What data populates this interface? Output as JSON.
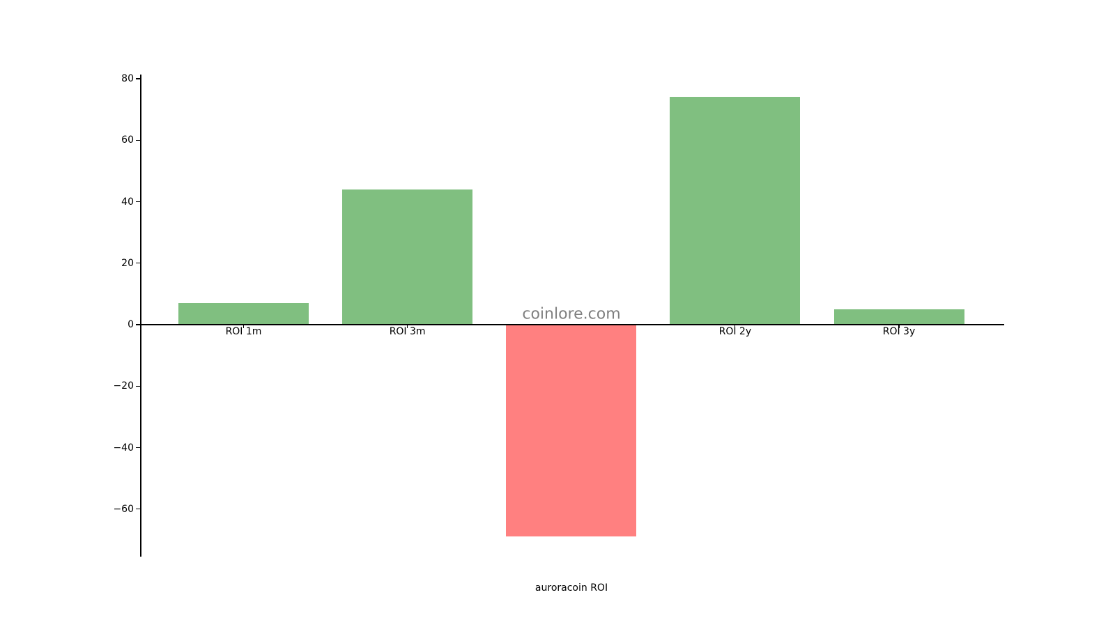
{
  "chart_data": {
    "type": "bar",
    "xlabel": "auroracoin ROI",
    "watermark": "coinlore.com",
    "categories": [
      "ROI 1m",
      "ROI 3m",
      "",
      "ROI 2y",
      "ROI 3y"
    ],
    "values": [
      7,
      44,
      -69,
      74,
      5
    ],
    "positive_color": "#80bf80",
    "negative_color": "#ff8080",
    "y_ticks": [
      80,
      60,
      40,
      20,
      0,
      -20,
      -40,
      -60
    ],
    "ylim": [
      -75.5,
      81.5
    ],
    "grid": false,
    "legend": null,
    "axis_color": "#000000",
    "tick_label_color": "#000000",
    "watermark_color": "#7f7f7f",
    "background_color": "#ffffff"
  }
}
